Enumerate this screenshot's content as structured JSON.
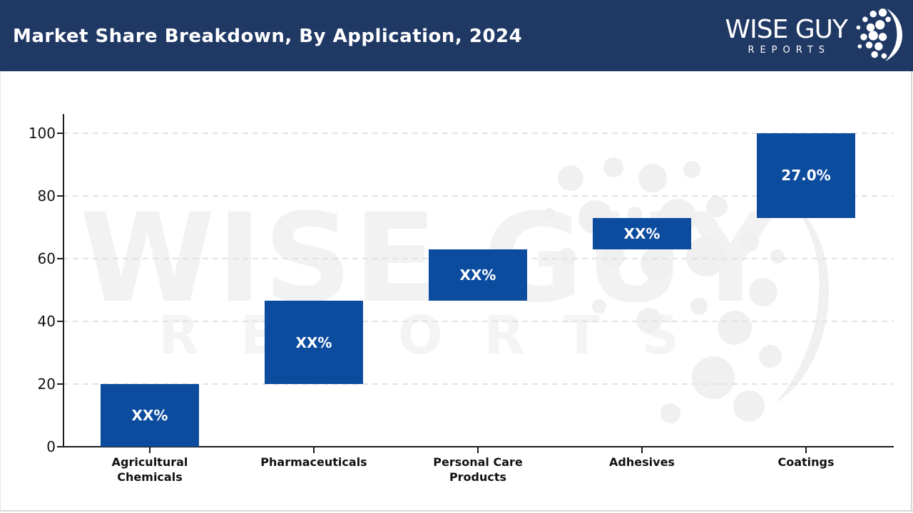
{
  "header": {
    "title": "Market Share Breakdown, By Application, 2024",
    "bg_color": "#1f3864",
    "logo": {
      "line1": "WISE GUY",
      "line2": "REPORTS"
    }
  },
  "watermark": {
    "line1": "WISE GUY",
    "line2": "REPORTS"
  },
  "chart_data": {
    "type": "bar",
    "subtype": "waterfall",
    "title": "Market Share Breakdown, By Application, 2024",
    "categories": [
      "Agricultural Chemicals",
      "Pharmaceuticals",
      "Personal Care Products",
      "Adhesives",
      "Coatings"
    ],
    "category_label_lines": [
      [
        "Agricultural",
        "Chemicals"
      ],
      [
        "Pharmaceuticals"
      ],
      [
        "Personal Care",
        "Products"
      ],
      [
        "Adhesives"
      ],
      [
        "Coatings"
      ]
    ],
    "segments": [
      {
        "category": "Agricultural Chemicals",
        "start": 0,
        "end": 20,
        "value_label": "XX%"
      },
      {
        "category": "Pharmaceuticals",
        "start": 20,
        "end": 46.5,
        "value_label": "XX%"
      },
      {
        "category": "Personal Care Products",
        "start": 46.5,
        "end": 63,
        "value_label": "XX%"
      },
      {
        "category": "Adhesives",
        "start": 63,
        "end": 73,
        "value_label": "XX%"
      },
      {
        "category": "Coatings",
        "start": 73,
        "end": 100,
        "value_label": "27.0%"
      }
    ],
    "yticks": [
      0,
      20,
      40,
      60,
      80,
      100
    ],
    "ylim": [
      0,
      106
    ],
    "grid": "horizontal-dashed",
    "legend": "none",
    "colors": {
      "bar": "#0c4c9f",
      "bar_label": "#ffffff",
      "axis": "#1c1c1c",
      "grid": "#e2e2e2"
    }
  }
}
